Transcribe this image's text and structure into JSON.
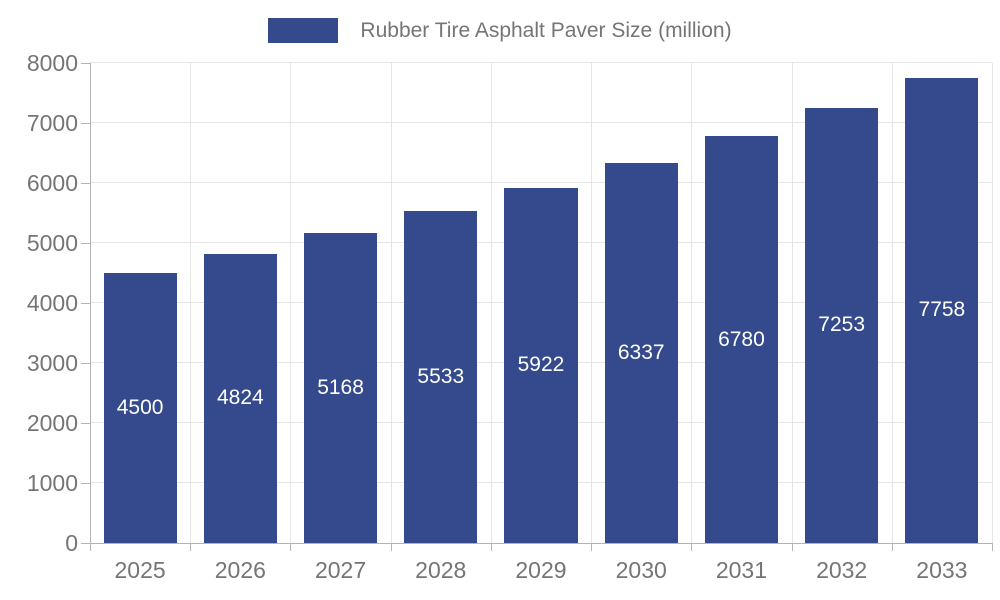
{
  "legend": {
    "label": "Rubber Tire Asphalt Paver Size (million)",
    "swatch_color": "#354a8c"
  },
  "chart_data": {
    "type": "bar",
    "title": "Rubber Tire Asphalt Paver Size (million)",
    "categories": [
      "2025",
      "2026",
      "2027",
      "2028",
      "2029",
      "2030",
      "2031",
      "2032",
      "2033"
    ],
    "values": [
      4500,
      4824,
      5168,
      5533,
      5922,
      6337,
      6780,
      7253,
      7758
    ],
    "xlabel": "",
    "ylabel": "",
    "ylim": [
      0,
      8000
    ],
    "ytick_step": 1000,
    "grid": true,
    "legend_position": "top-center",
    "bar_width_fraction": 0.73,
    "colors": {
      "bar": "#354a8c",
      "bar_label": "#ffffff",
      "grid": "#e6e6e6",
      "axis": "#b3b3b3",
      "tick_label": "#757575",
      "legend_text": "#757575",
      "background": "#ffffff"
    }
  }
}
